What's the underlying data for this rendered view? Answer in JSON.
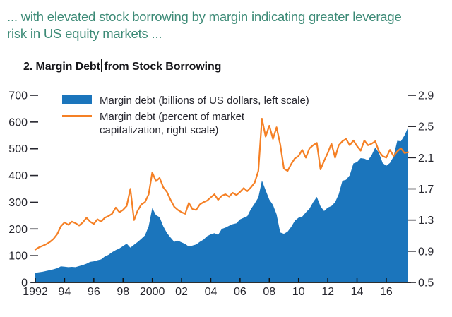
{
  "header": {
    "line1": "... with elevated stock borrowing by margin indicating greater leverage",
    "line2": "risk in US equity markets ..."
  },
  "figure": {
    "title_part1": "2. Margin Debt",
    "title_part2": "from Stock Borrowing"
  },
  "legend": [
    {
      "label": "Margin debt (billions of US dollars, left scale)"
    },
    {
      "label_line1": "Margin debt (percent of market",
      "label_line2": "capitalization, right scale)"
    }
  ],
  "colors": {
    "debt_blue": "#1b75bc",
    "pct_orange": "#f58025",
    "heading_green": "#3c8a76",
    "text_dark": "#26262e",
    "axis_black": "#111111"
  },
  "chart_data": {
    "type": "area",
    "title": "2. Margin Debt from Stock Borrowing",
    "x_start": 1992.0,
    "x_step_years": 0.25,
    "x_end": 2017.5,
    "x_tick_years": [
      1992,
      1994,
      1996,
      1998,
      2000,
      2002,
      2004,
      2006,
      2008,
      2010,
      2012,
      2014,
      2016
    ],
    "x_tick_labels": [
      "1992",
      "94",
      "96",
      "98",
      "2000",
      "02",
      "04",
      "06",
      "08",
      "10",
      "12",
      "14",
      "16"
    ],
    "left_axis": {
      "label": "Margin debt (billions of US dollars)",
      "range": [
        0,
        700
      ],
      "ticks": [
        0,
        100,
        200,
        300,
        400,
        500,
        600,
        700
      ]
    },
    "right_axis": {
      "label": "Margin debt (percent of market capitalization)",
      "range": [
        0.5,
        2.9
      ],
      "ticks": [
        0.5,
        0.9,
        1.3,
        1.7,
        2.1,
        2.5,
        2.9
      ]
    },
    "grid": false,
    "legend_position": "top-left-inside",
    "series": [
      {
        "name": "Margin debt (billions of US dollars, left scale)",
        "type": "area",
        "axis": "left",
        "color": "#1b75bc",
        "values": [
          36,
          38,
          40,
          43,
          46,
          49,
          53,
          60,
          59,
          57,
          58,
          57,
          61,
          65,
          70,
          77,
          79,
          83,
          86,
          97,
          103,
          113,
          121,
          127,
          136,
          145,
          130,
          141,
          151,
          163,
          176,
          210,
          278,
          252,
          244,
          210,
          185,
          168,
          152,
          156,
          150,
          144,
          134,
          138,
          142,
          152,
          160,
          173,
          180,
          184,
          178,
          200,
          205,
          212,
          218,
          221,
          236,
          242,
          248,
          275,
          295,
          318,
          381,
          345,
          310,
          290,
          255,
          187,
          182,
          190,
          208,
          231,
          242,
          246,
          262,
          276,
          300,
          320,
          285,
          267,
          280,
          286,
          300,
          330,
          380,
          384,
          401,
          445,
          450,
          465,
          463,
          457,
          476,
          505,
          484,
          447,
          436,
          447,
          471,
          530,
          528,
          550,
          581
        ]
      },
      {
        "name": "Margin debt (percent of market capitalization, right scale)",
        "type": "line",
        "axis": "right",
        "color": "#f58025",
        "values": [
          0.92,
          0.95,
          0.97,
          0.99,
          1.02,
          1.06,
          1.12,
          1.22,
          1.27,
          1.24,
          1.28,
          1.26,
          1.23,
          1.27,
          1.33,
          1.28,
          1.25,
          1.31,
          1.28,
          1.33,
          1.35,
          1.38,
          1.46,
          1.4,
          1.43,
          1.48,
          1.7,
          1.3,
          1.42,
          1.5,
          1.53,
          1.63,
          1.91,
          1.8,
          1.84,
          1.72,
          1.66,
          1.56,
          1.47,
          1.43,
          1.4,
          1.38,
          1.52,
          1.44,
          1.43,
          1.5,
          1.53,
          1.55,
          1.59,
          1.63,
          1.56,
          1.61,
          1.63,
          1.6,
          1.65,
          1.62,
          1.66,
          1.71,
          1.67,
          1.72,
          1.78,
          1.93,
          2.6,
          2.37,
          2.51,
          2.34,
          2.49,
          2.27,
          1.96,
          1.93,
          2.02,
          2.09,
          2.12,
          2.2,
          2.1,
          2.22,
          2.26,
          2.29,
          1.95,
          2.06,
          2.16,
          2.28,
          2.1,
          2.26,
          2.31,
          2.34,
          2.26,
          2.32,
          2.25,
          2.19,
          2.32,
          2.26,
          2.28,
          2.31,
          2.18,
          2.12,
          2.1,
          2.2,
          2.12,
          2.18,
          2.22,
          2.16,
          2.17
        ]
      }
    ]
  }
}
